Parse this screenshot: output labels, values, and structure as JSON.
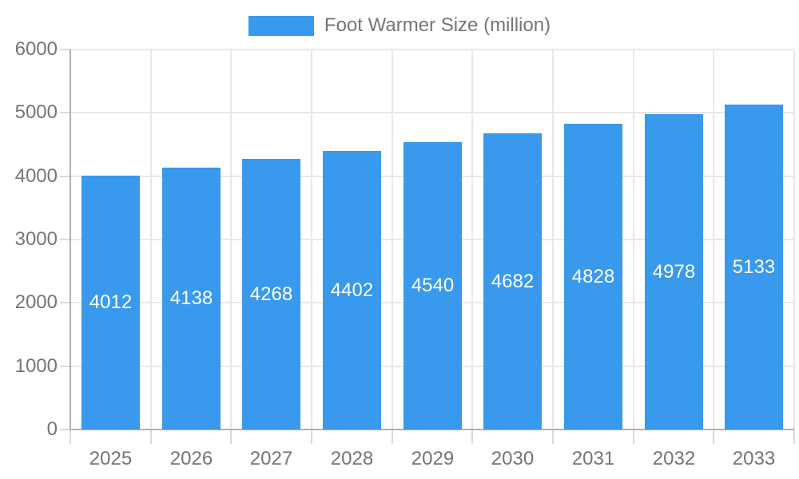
{
  "chart_data": {
    "type": "bar",
    "title": "",
    "legend": {
      "label": "Foot Warmer Size (million)",
      "position": "top-center"
    },
    "categories": [
      "2025",
      "2026",
      "2027",
      "2028",
      "2029",
      "2030",
      "2031",
      "2032",
      "2033"
    ],
    "series": [
      {
        "name": "Foot Warmer Size (million)",
        "values": [
          4012,
          4138,
          4268,
          4402,
          4540,
          4682,
          4828,
          4978,
          5133
        ]
      }
    ],
    "xlabel": "",
    "ylabel": "",
    "ylim": [
      0,
      6000
    ],
    "ytick_step": 1000,
    "grid": true,
    "bar_value_labels": true
  },
  "colors": {
    "bar": "#3999EC",
    "value_label": "#FFFFFF",
    "axis_text": "#757575",
    "grid_line": "#E8E8E8",
    "axis_line": "#B0B0B0",
    "tick_line": "#D9D9D9",
    "background": "#FFFFFF"
  }
}
